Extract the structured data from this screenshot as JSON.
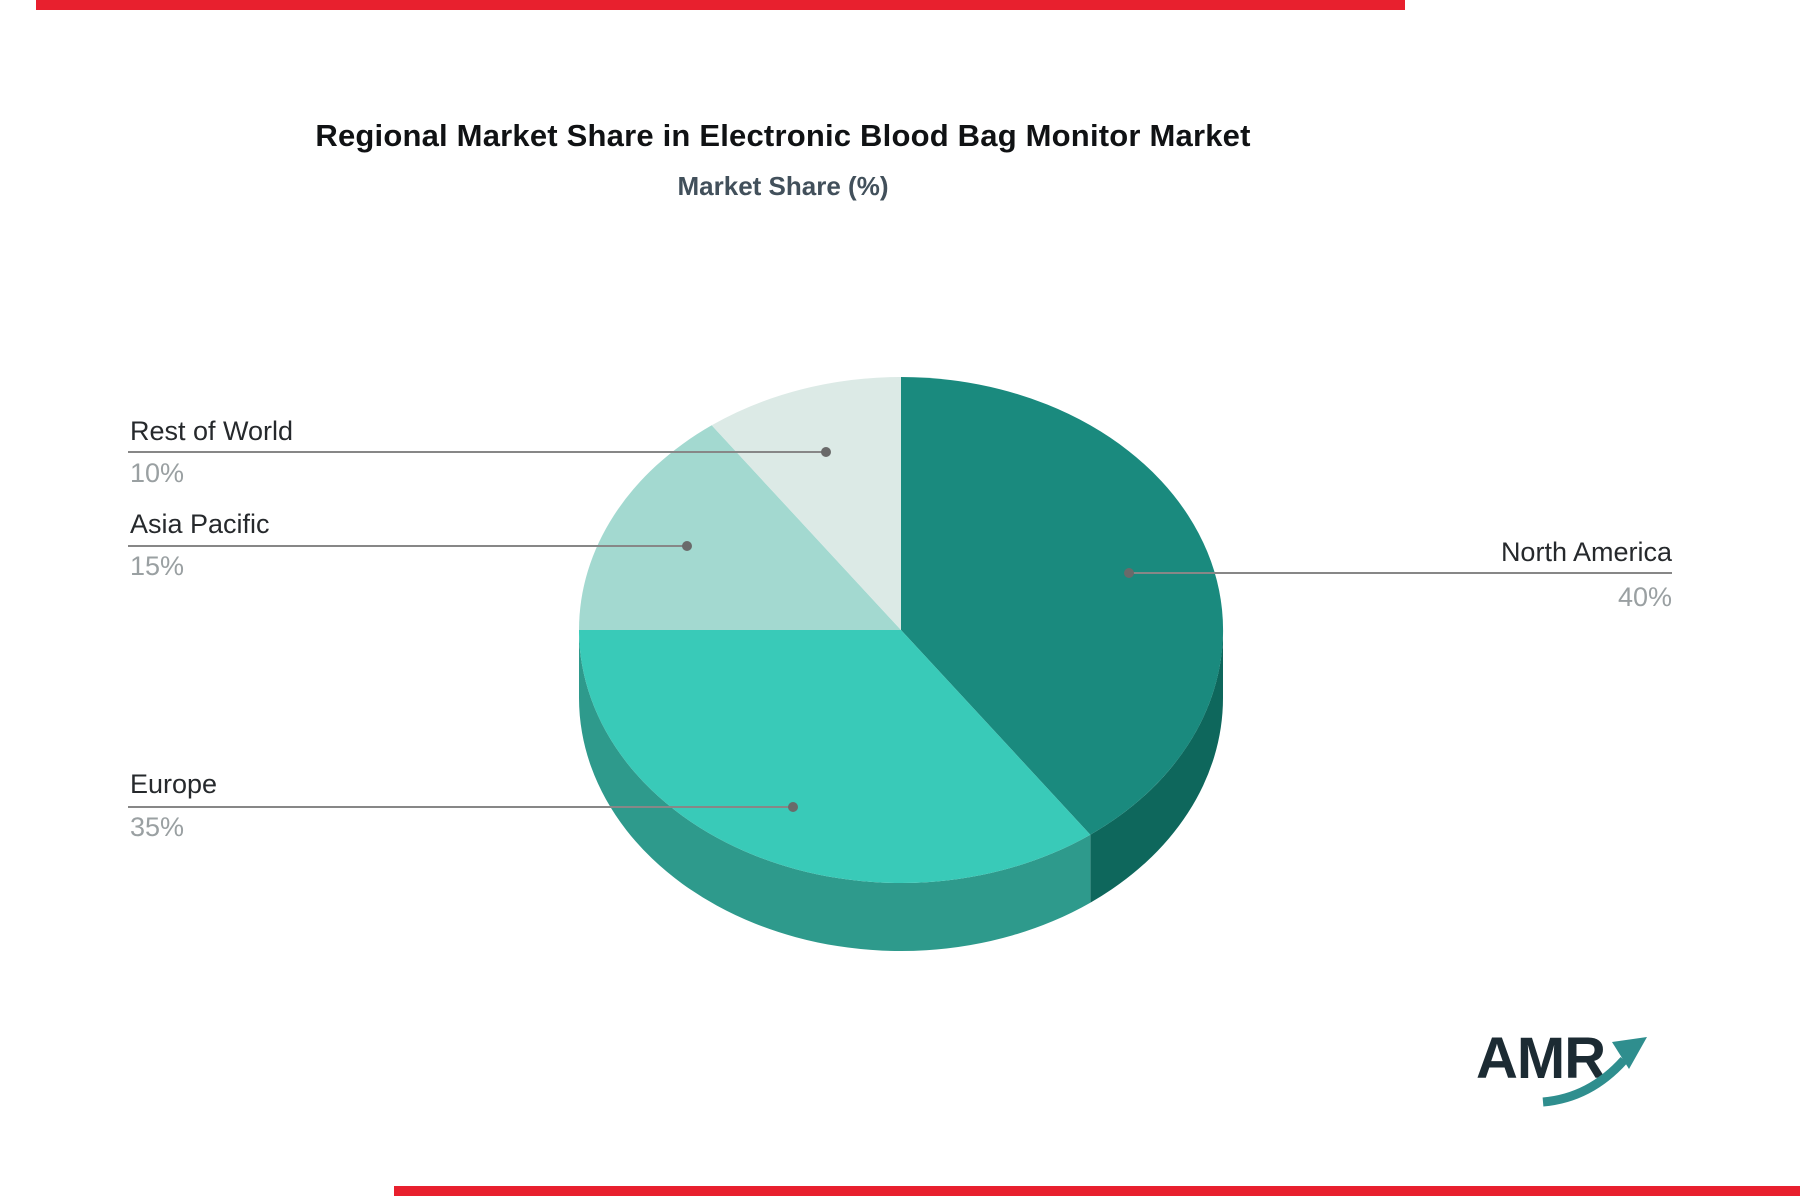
{
  "page": {
    "accent_bar_color": "#e8202e",
    "background_color": "#ffffff"
  },
  "header": {
    "title": "Regional Market Share in Electronic Blood Bag Monitor Market",
    "subtitle": "Market Share (%)"
  },
  "chart_data": {
    "type": "pie",
    "style": "3d-pie",
    "title": "Regional Market Share in Electronic Blood Bag Monitor Market",
    "subtitle": "Market Share (%)",
    "categories": [
      "North America",
      "Europe",
      "Asia Pacific",
      "Rest of World"
    ],
    "values": [
      40,
      35,
      15,
      10
    ],
    "start_angle": "12-oclock, clockwise",
    "leader_line_color": "#878787",
    "leader_dot_color": "#6a6a6a",
    "slices": [
      {
        "id": "north-america",
        "label": "North America",
        "value": 40,
        "value_label": "40%",
        "color": "#1a8a7e",
        "side_color": "#0e675c"
      },
      {
        "id": "europe",
        "label": "Europe",
        "value": 35,
        "value_label": "35%",
        "color": "#39cab8",
        "side_color": "#2e9a8c"
      },
      {
        "id": "asia-pacific",
        "label": "Asia Pacific",
        "value": 15,
        "value_label": "15%",
        "color": "#a3d9d0",
        "side_color": "#8fc9be"
      },
      {
        "id": "rest-of-world",
        "label": "Rest of World",
        "value": 10,
        "value_label": "10%",
        "color": "#dceae6",
        "side_color": "#c5dcd6"
      }
    ]
  },
  "branding": {
    "logo_text": "AMR",
    "logo_color": "#1c2b33",
    "logo_arrow_color": "#2f8e8e"
  }
}
